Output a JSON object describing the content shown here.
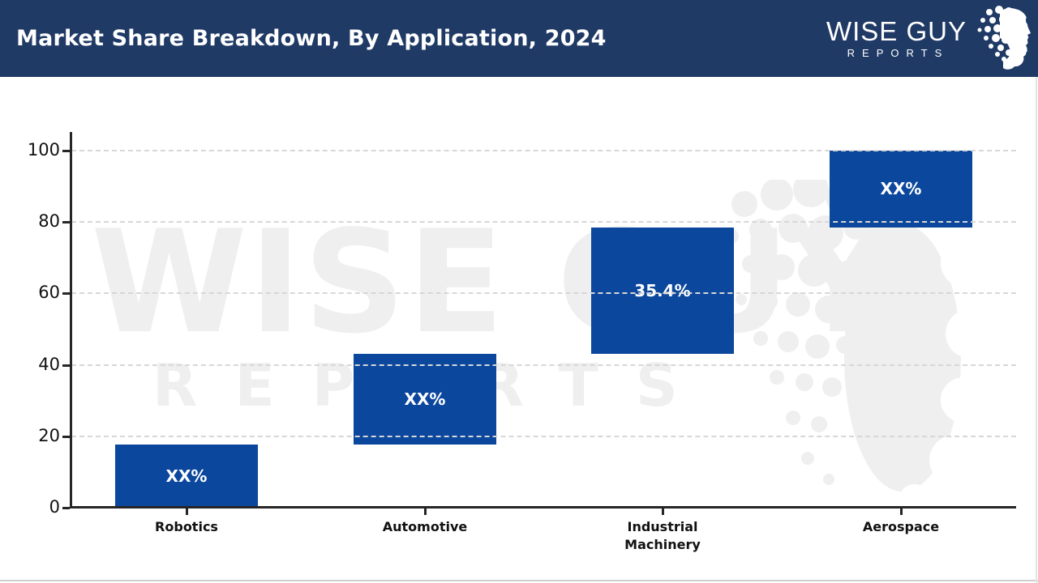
{
  "header": {
    "title": "Market Share Breakdown, By Application, 2024",
    "logo": {
      "name": "WISE GUY",
      "tagline": "REPORTS"
    }
  },
  "watermark": {
    "name": "WISE GUY",
    "tagline": "REPORTS"
  },
  "colors": {
    "header_bg": "#203a66",
    "header_text": "#ffffff",
    "bar": "#0b479d",
    "bar_label": "#ffffff",
    "grid": "#d7d7d7",
    "axis": "#262626",
    "watermark": "#efeff0"
  },
  "chart_data": {
    "type": "bar",
    "subtype": "waterfall-floating-bars",
    "title": "Market Share Breakdown, By Application, 2024",
    "categories": [
      "Robotics",
      "Automotive",
      "Industrial Machinery",
      "Aerospace"
    ],
    "category_label_lines": [
      [
        "Robotics"
      ],
      [
        "Automotive"
      ],
      [
        "Industrial",
        "Machinery"
      ],
      [
        "Aerospace"
      ]
    ],
    "series": [
      {
        "category": "Robotics",
        "start": 0,
        "end": 17.7,
        "value_label": "XX%"
      },
      {
        "category": "Automotive",
        "start": 17.7,
        "end": 43.1,
        "value_label": "XX%"
      },
      {
        "category": "Industrial Machinery",
        "start": 43.1,
        "end": 78.5,
        "value_label": "35.4%"
      },
      {
        "category": "Aerospace",
        "start": 78.5,
        "end": 100,
        "value_label": "XX%"
      }
    ],
    "yticks": [
      0,
      20,
      40,
      60,
      80,
      100
    ],
    "ylim": [
      0,
      105
    ],
    "xlabel": "",
    "ylabel": "",
    "grid": "horizontal-dashed",
    "legend": "none"
  }
}
